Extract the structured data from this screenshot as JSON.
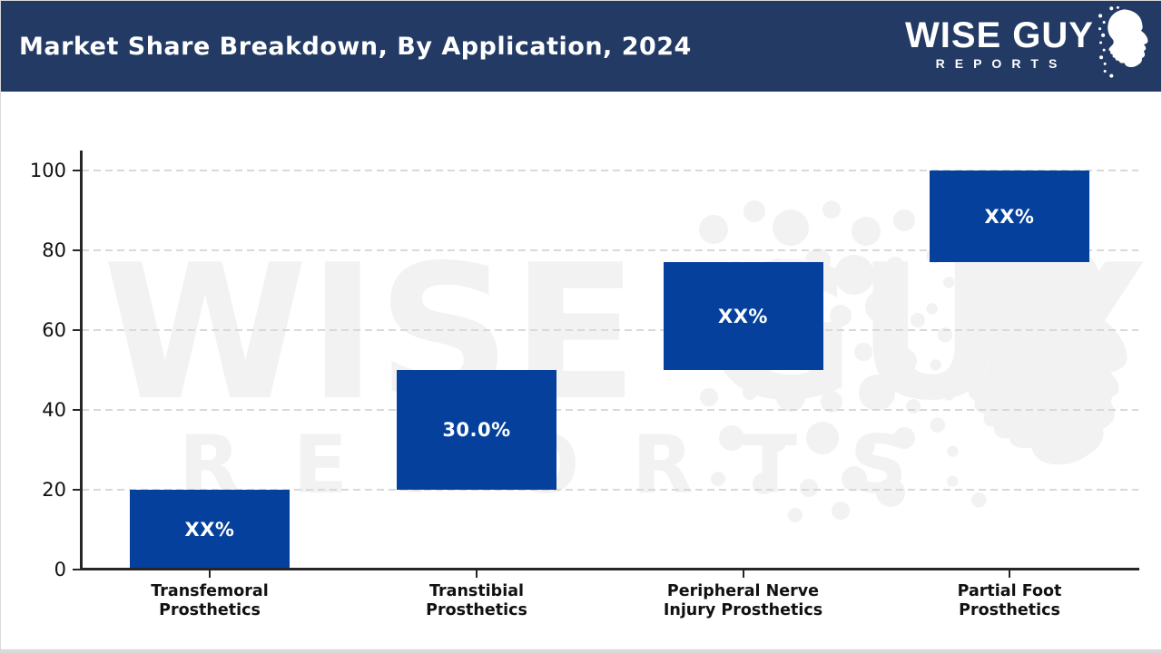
{
  "header": {
    "title": "Market Share Breakdown, By Application, 2024",
    "logo": {
      "line1": "WISE GUY",
      "line2": "REPORTS"
    }
  },
  "watermark": {
    "line1": "WISE GUY",
    "line2": "REPORTS"
  },
  "colors": {
    "header_bg": "#223A64",
    "bar": "#05419C",
    "gridline": "#D9D9D9",
    "axis": "#262626",
    "watermark": "#F2F2F2",
    "title_text": "#FFFFFF"
  },
  "chart_data": {
    "type": "bar",
    "subtype": "floating-segment-waterfall",
    "title": "Market Share Breakdown, By Application, 2024",
    "categories": [
      [
        "Transfemoral",
        "Prosthetics"
      ],
      [
        "Transtibial",
        "Prosthetics"
      ],
      [
        "Peripheral Nerve",
        "Injury Prosthetics"
      ],
      [
        "Partial Foot",
        "Prosthetics"
      ]
    ],
    "bars": [
      {
        "label": "XX%",
        "start": 0,
        "end": 20
      },
      {
        "label": "30.0%",
        "start": 20,
        "end": 50
      },
      {
        "label": "XX%",
        "start": 50,
        "end": 77
      },
      {
        "label": "XX%",
        "start": 77,
        "end": 100
      }
    ],
    "segment_sizes_pct": [
      20,
      30,
      27,
      23
    ],
    "yticks": [
      0,
      20,
      40,
      60,
      80,
      100
    ],
    "ylim": [
      0,
      105
    ],
    "xlabel": "",
    "ylabel": "",
    "grid": "horizontal dashed",
    "legend": "none",
    "bar_color": "#05419C"
  }
}
